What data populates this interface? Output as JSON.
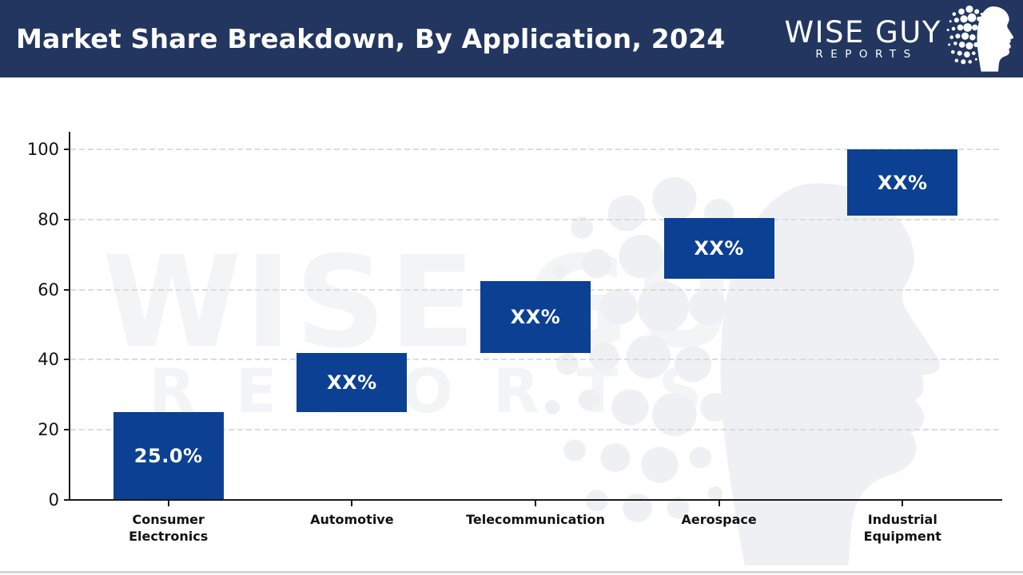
{
  "header": {
    "title": "Market Share Breakdown, By Application, 2024",
    "logo": {
      "line1": "WISE GUY",
      "line2": "REPORTS"
    }
  },
  "watermark": {
    "line1": "WISE GUY",
    "line2": "REPORTS"
  },
  "chart_data": {
    "type": "bar",
    "subtype": "floating-waterfall",
    "title": "Market Share Breakdown, By Application, 2024",
    "categories": [
      "Consumer\nElectronics",
      "Automotive",
      "Telecommunication",
      "Aerospace",
      "Industrial\nEquipment"
    ],
    "bars": [
      {
        "category": "Consumer Electronics",
        "start": 0,
        "end": 25,
        "value_label": "25.0%"
      },
      {
        "category": "Automotive",
        "start": 25,
        "end": 42,
        "value_label": "XX%"
      },
      {
        "category": "Telecommunication",
        "start": 42,
        "end": 62.5,
        "value_label": "XX%"
      },
      {
        "category": "Aerospace",
        "start": 63,
        "end": 80.5,
        "value_label": "XX%"
      },
      {
        "category": "Industrial Equipment",
        "start": 81,
        "end": 100,
        "value_label": "XX%"
      }
    ],
    "yticks": [
      0,
      20,
      40,
      60,
      80,
      100
    ],
    "ylim": [
      0,
      105
    ],
    "xlabel": "",
    "ylabel": "",
    "legend": "none",
    "grid": "horizontal-dashed",
    "bar_color": "#0b4093"
  },
  "colors": {
    "header_bg": "#22365f",
    "bar": "#0b4093",
    "gridline": "#dcdcdc",
    "axis": "#1a1a1a",
    "watermark": "#f3f4f6",
    "footer_rule": "#d5d5d5"
  }
}
